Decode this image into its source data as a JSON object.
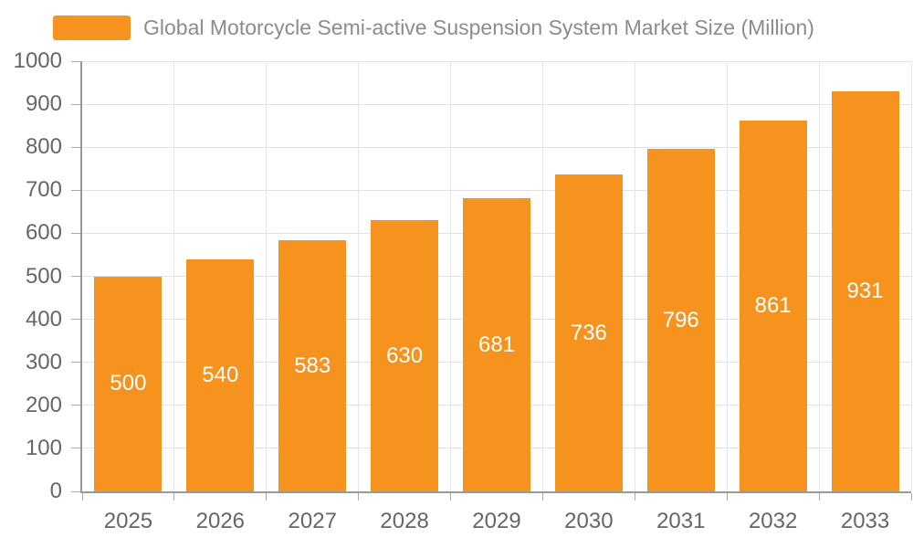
{
  "legend": {
    "label": "Global Motorcycle Semi-active Suspension System Market Size (Million)"
  },
  "colors": {
    "bar": "#f6921e",
    "axis_line": "#999999",
    "tick": "#aaaaaa",
    "hgrid": "#e2e2e2",
    "vgrid": "#e6e6e6",
    "axis_label": "#666666",
    "legend_text": "#8c8c8c",
    "bar_label": "#ffffff",
    "background": "#ffffff"
  },
  "chart_data": {
    "type": "bar",
    "title": "Global Motorcycle Semi-active Suspension System Market Size (Million)",
    "categories": [
      "2025",
      "2026",
      "2027",
      "2028",
      "2029",
      "2030",
      "2031",
      "2032",
      "2033"
    ],
    "series": [
      {
        "name": "Global Motorcycle Semi-active Suspension System Market Size (Million)",
        "values": [
          500,
          540,
          583,
          630,
          681,
          736,
          796,
          861,
          931
        ]
      }
    ],
    "xlabel": "",
    "ylabel": "",
    "ylim": [
      0,
      1000
    ],
    "ytick_interval": 100,
    "yticks": [
      0,
      100,
      200,
      300,
      400,
      500,
      600,
      700,
      800,
      900,
      1000
    ],
    "grid": true,
    "legend_position": "top-left",
    "value_labels": "inside-center"
  }
}
